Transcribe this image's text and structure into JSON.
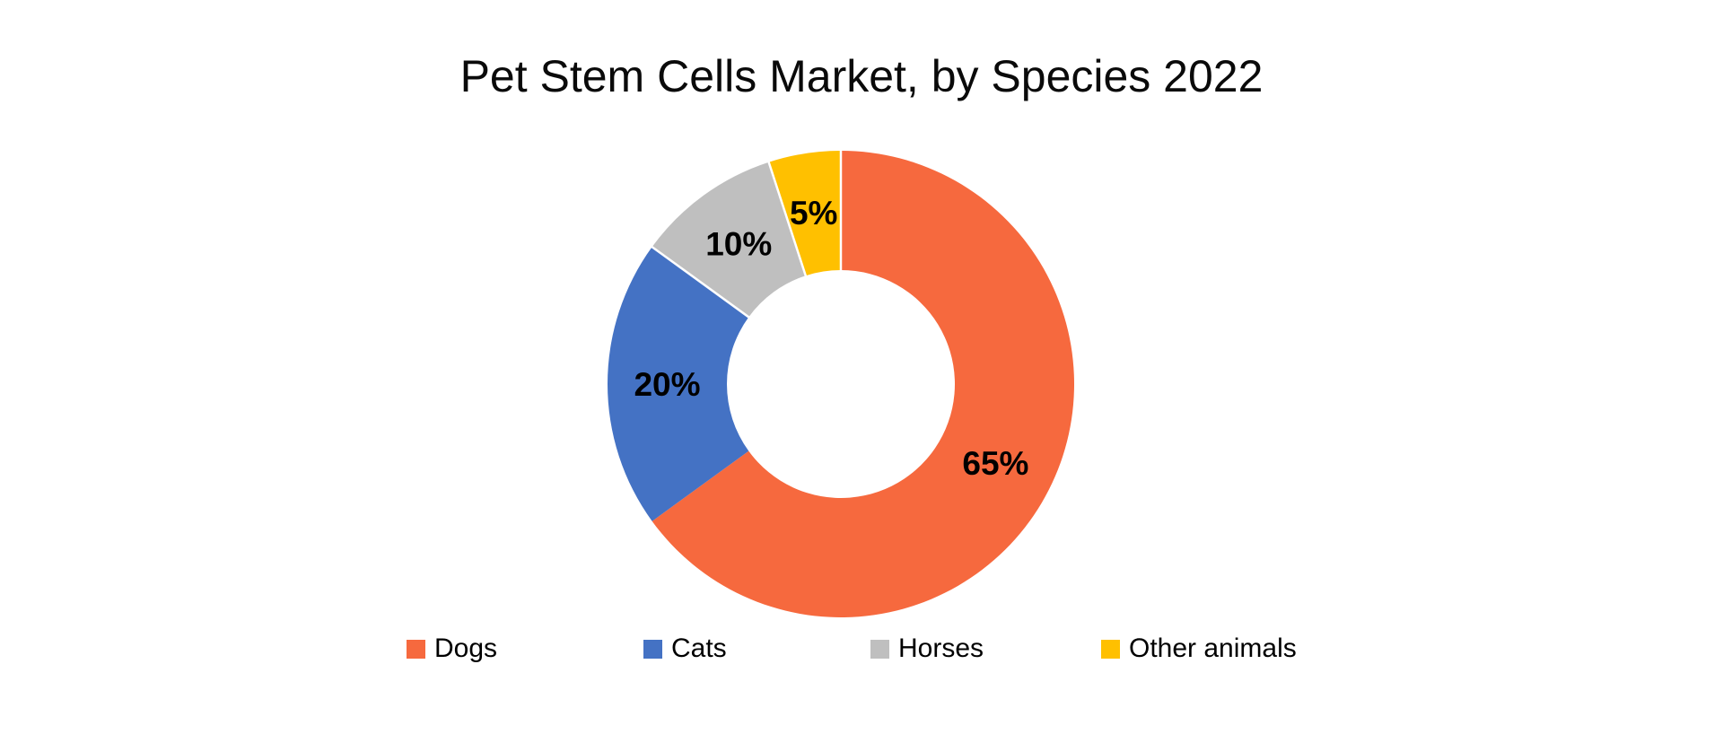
{
  "page": {
    "background_color": "#FFFFFF"
  },
  "chart_data": {
    "type": "pie",
    "variant": "donut",
    "title": "Pet Stem Cells Market, by Species 2022",
    "categories": [
      "Dogs",
      "Cats",
      "Horses",
      "Other animals"
    ],
    "values": [
      65,
      20,
      10,
      5
    ],
    "value_labels": [
      "65%",
      "20%",
      "10%",
      "5%"
    ],
    "colors": [
      "#F6693E",
      "#4472C4",
      "#BFBFBF",
      "#FFC000"
    ],
    "label_color": "#000000",
    "title_color": "#0a0a0a",
    "start_angle_deg": 0,
    "direction": "clockwise",
    "hole_ratio": 0.49,
    "separator_color": "#FFFFFF",
    "separator_boundaries_deg": [
      0,
      306,
      342
    ],
    "legend_position": "bottom",
    "data_labels_position": "inside"
  }
}
